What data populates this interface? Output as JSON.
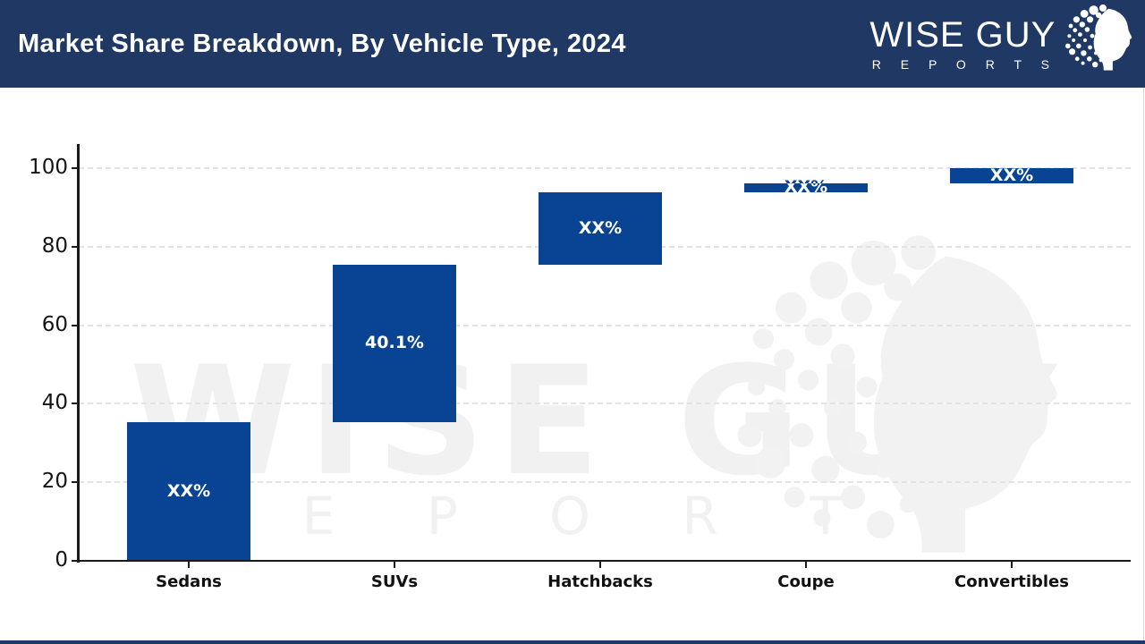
{
  "header": {
    "title": "Market Share Breakdown, By Vehicle Type, 2024",
    "logo": {
      "line1": "WISE GUY",
      "line2": "R E P O R T S"
    }
  },
  "watermark": {
    "line1": "WISE GUY",
    "line2": "R E P O R T S"
  },
  "colors": {
    "header_bg": "#1f3864",
    "footer_bg": "#1f3864",
    "bar": "#084394",
    "bar_label": "#ffffff",
    "grid": "#e3e3e3",
    "axis": "#1a1a1a",
    "watermark": "#f1f1f1"
  },
  "chart_data": {
    "type": "bar",
    "subtype": "waterfall",
    "title": "Market Share Breakdown, By Vehicle Type, 2024",
    "xlabel": "",
    "ylabel": "",
    "categories": [
      "Sedans",
      "SUVs",
      "Hatchbacks",
      "Coupe",
      "Convertibles"
    ],
    "segments": [
      {
        "category": "Sedans",
        "start": 0,
        "end": 35.4,
        "label": "XX%"
      },
      {
        "category": "SUVs",
        "start": 35.4,
        "end": 75.5,
        "label": "40.1%"
      },
      {
        "category": "Hatchbacks",
        "start": 75.5,
        "end": 93.8,
        "label": "XX%"
      },
      {
        "category": "Coupe",
        "start": 93.8,
        "end": 96.2,
        "label": "XX%"
      },
      {
        "category": "Convertibles",
        "start": 96.2,
        "end": 100,
        "label": "XX%"
      }
    ],
    "yticks": [
      0,
      20,
      40,
      60,
      80,
      100
    ],
    "ylim": [
      0,
      106
    ],
    "grid": "horizontal-dashed",
    "legend": "none"
  }
}
